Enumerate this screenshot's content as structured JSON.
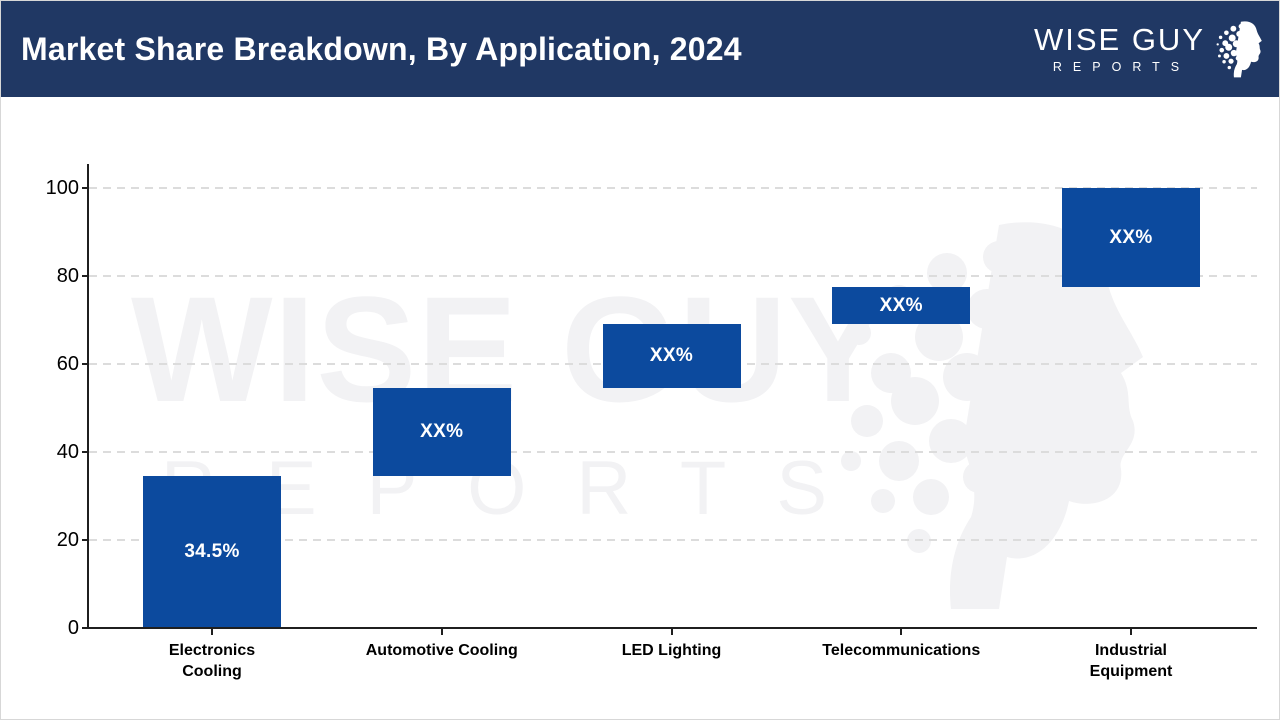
{
  "header": {
    "title": "Market Share Breakdown, By Application, 2024",
    "bg_color": "#203864",
    "logo": {
      "line1": "WISE GUY",
      "line2": "REPORTS"
    }
  },
  "watermark": {
    "line1": "WISE GUY",
    "line2": "REPORTS"
  },
  "chart_data": {
    "type": "bar",
    "subtype": "waterfall",
    "title": "Market Share Breakdown, By Application, 2024",
    "categories": [
      "Electronics\nCooling",
      "Automotive Cooling",
      "LED Lighting",
      "Telecommunications",
      "Industrial\nEquipment"
    ],
    "segments": [
      {
        "category": "Electronics Cooling",
        "start": 0,
        "end": 34.5,
        "label": "34.5%"
      },
      {
        "category": "Automotive Cooling",
        "start": 34.5,
        "end": 54.5,
        "label": "XX%"
      },
      {
        "category": "LED Lighting",
        "start": 54.5,
        "end": 69,
        "label": "XX%"
      },
      {
        "category": "Telecommunications",
        "start": 69,
        "end": 77.5,
        "label": "XX%"
      },
      {
        "category": "Industrial Equipment",
        "start": 77.5,
        "end": 100,
        "label": "XX%"
      }
    ],
    "ylim": [
      0,
      100
    ],
    "yticks": [
      0,
      20,
      40,
      60,
      80,
      100
    ],
    "xlabel": "",
    "ylabel": "",
    "grid": "horizontal-dashed",
    "legend": "none",
    "bar_color": "#0c4a9e",
    "bar_label_color": "#ffffff"
  }
}
